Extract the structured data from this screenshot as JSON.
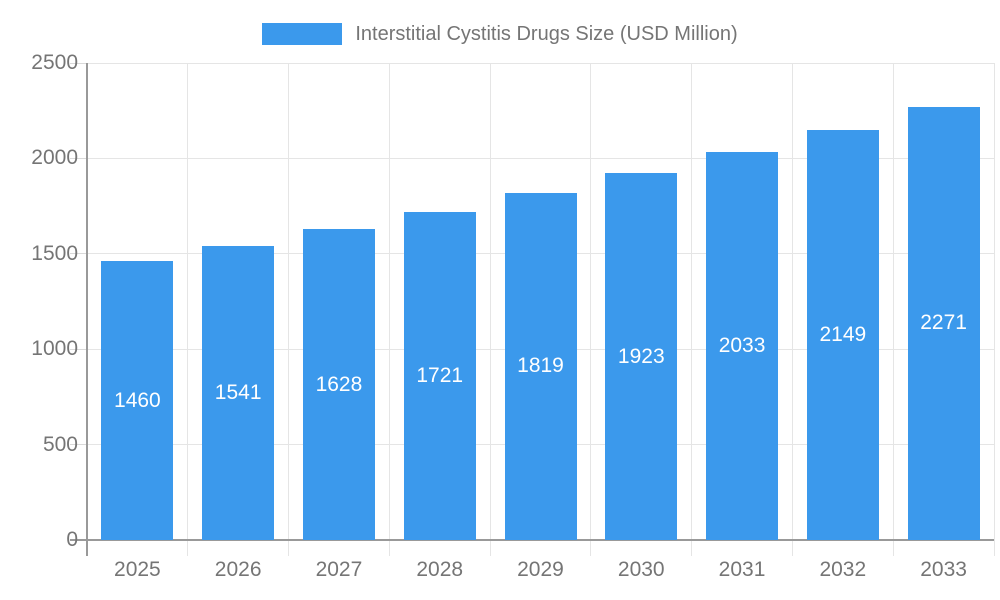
{
  "legend": {
    "label": "Interstitial Cystitis Drugs Size (USD Million)"
  },
  "chart_data": {
    "type": "bar",
    "title": "Interstitial Cystitis Drugs Size (USD Million)",
    "categories": [
      "2025",
      "2026",
      "2027",
      "2028",
      "2029",
      "2030",
      "2031",
      "2032",
      "2033"
    ],
    "values": [
      1460,
      1541,
      1628,
      1721,
      1819,
      1923,
      2033,
      2149,
      2271
    ],
    "xlabel": "",
    "ylabel": "",
    "ylim": [
      0,
      2500
    ],
    "yticks": [
      0,
      500,
      1000,
      1500,
      2000,
      2500
    ],
    "grid": true,
    "legend_position": "top",
    "bar_labels_inside": true,
    "colors": {
      "bar": "#3b99ec",
      "grid": "#e5e5e5",
      "axis": "#999999",
      "tick": "#d9d9d9",
      "text": "#757575",
      "bar_label": "#ffffff"
    }
  }
}
